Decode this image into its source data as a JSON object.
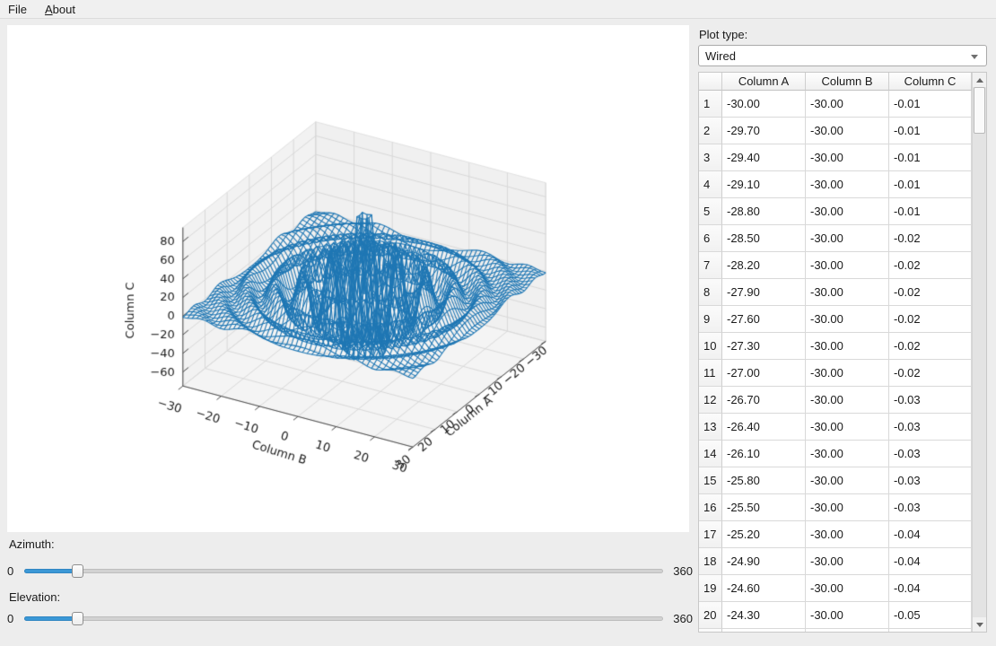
{
  "menu": {
    "file_label": "File",
    "about_label": "About",
    "about_accel": "A"
  },
  "chart_data": {
    "type": "wireframe",
    "title": "",
    "xlabel": "Column B",
    "ylabel": "Column A",
    "zlabel": "Column C",
    "xlim": [
      -30,
      30
    ],
    "ylim": [
      -30,
      30
    ],
    "zlim": [
      -75,
      95
    ],
    "xticks": [
      -30,
      -20,
      -10,
      0,
      10,
      20,
      30
    ],
    "yticks": [
      -30,
      -20,
      -10,
      0,
      10,
      20,
      30
    ],
    "zticks": [
      -60,
      -40,
      -20,
      0,
      20,
      40,
      60,
      80
    ],
    "y_axis_reversed": true,
    "view": {
      "elev": 30,
      "azim": -60
    },
    "grid": true,
    "wire_color": "#1f77b4",
    "pane_color": "#f2f2f2",
    "grid_color": "#d9d9d9",
    "surface": {
      "formula": "z = 100 * sin(r) * exp(-r/10), r = sqrt(x^2+y^2)",
      "amplitude": 100,
      "decay": 10,
      "domain": [
        -30,
        30
      ],
      "grid_lines": 50
    }
  },
  "sliders": {
    "azimuth": {
      "label": "Azimuth:",
      "min": 0,
      "max": 360,
      "value": 30,
      "min_label": "0",
      "max_label": "360"
    },
    "elevation": {
      "label": "Elevation:",
      "min": 0,
      "max": 360,
      "value": 30,
      "min_label": "0",
      "max_label": "360"
    }
  },
  "right_panel": {
    "plot_type_label": "Plot type:",
    "dropdown": {
      "value": "Wired"
    },
    "table": {
      "columns": [
        "Column A",
        "Column B",
        "Column C"
      ],
      "rows": [
        [
          "1",
          "-30.00",
          "-30.00",
          "-0.01"
        ],
        [
          "2",
          "-29.70",
          "-30.00",
          "-0.01"
        ],
        [
          "3",
          "-29.40",
          "-30.00",
          "-0.01"
        ],
        [
          "4",
          "-29.10",
          "-30.00",
          "-0.01"
        ],
        [
          "5",
          "-28.80",
          "-30.00",
          "-0.01"
        ],
        [
          "6",
          "-28.50",
          "-30.00",
          "-0.02"
        ],
        [
          "7",
          "-28.20",
          "-30.00",
          "-0.02"
        ],
        [
          "8",
          "-27.90",
          "-30.00",
          "-0.02"
        ],
        [
          "9",
          "-27.60",
          "-30.00",
          "-0.02"
        ],
        [
          "10",
          "-27.30",
          "-30.00",
          "-0.02"
        ],
        [
          "11",
          "-27.00",
          "-30.00",
          "-0.02"
        ],
        [
          "12",
          "-26.70",
          "-30.00",
          "-0.03"
        ],
        [
          "13",
          "-26.40",
          "-30.00",
          "-0.03"
        ],
        [
          "14",
          "-26.10",
          "-30.00",
          "-0.03"
        ],
        [
          "15",
          "-25.80",
          "-30.00",
          "-0.03"
        ],
        [
          "16",
          "-25.50",
          "-30.00",
          "-0.03"
        ],
        [
          "17",
          "-25.20",
          "-30.00",
          "-0.04"
        ],
        [
          "18",
          "-24.90",
          "-30.00",
          "-0.04"
        ],
        [
          "19",
          "-24.60",
          "-30.00",
          "-0.04"
        ],
        [
          "20",
          "-24.30",
          "-30.00",
          "-0.05"
        ]
      ]
    }
  }
}
